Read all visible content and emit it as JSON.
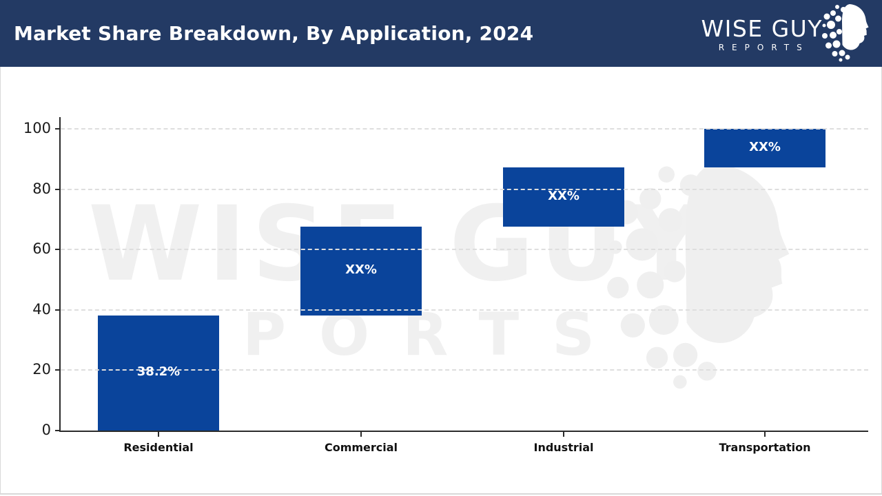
{
  "header": {
    "title": "Market Share Breakdown, By Application, 2024",
    "bg_color": "#233a64"
  },
  "logo": {
    "line1": "WISE GUY",
    "line2": "REPORTS"
  },
  "watermark": {
    "line1": "WISE GUY",
    "line2": "PORTS"
  },
  "chart_data": {
    "type": "bar",
    "subtype": "waterfall",
    "title": "Market Share Breakdown, By Application, 2024",
    "categories": [
      "Residential",
      "Commercial",
      "Industrial",
      "Transportation"
    ],
    "segments": [
      {
        "category": "Residential",
        "start": 0,
        "end": 38.2,
        "label": "38.2%"
      },
      {
        "category": "Commercial",
        "start": 38.2,
        "end": 67.6,
        "label": "XX%"
      },
      {
        "category": "Industrial",
        "start": 67.6,
        "end": 87.3,
        "label": "XX%"
      },
      {
        "category": "Transportation",
        "start": 87.3,
        "end": 100,
        "label": "XX%"
      }
    ],
    "xlabel": "",
    "ylabel": "",
    "ylim": [
      0,
      100
    ],
    "yticks": [
      0,
      20,
      40,
      60,
      80,
      100
    ],
    "grid": "horizontal dashed",
    "gridline_color": "#dedede",
    "bar_color": "#0a449b",
    "axis_color": "#2a2a2a",
    "legend": "none"
  }
}
